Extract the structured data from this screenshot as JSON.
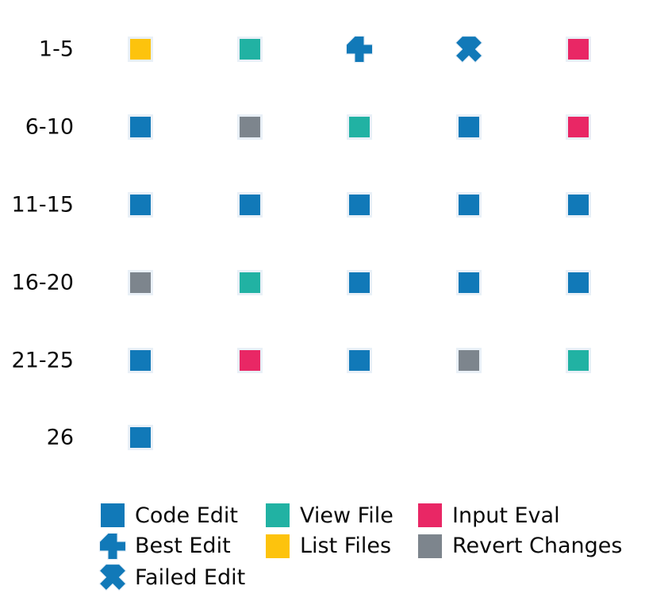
{
  "palette": {
    "blue": "#1179b8",
    "teal": "#21b2a3",
    "yellow": "#fdc30d",
    "pink": "#e92765",
    "gray": "#7d858d",
    "marker_halo": "#e9f0f7",
    "text": "#0a0a0a",
    "background": "#ffffff"
  },
  "markers": {
    "code_edit": {
      "shape": "square",
      "color": "#1179b8",
      "legend": "Code Edit"
    },
    "view_file": {
      "shape": "square",
      "color": "#21b2a3",
      "legend": "View File"
    },
    "input_eval": {
      "shape": "square",
      "color": "#e92765",
      "legend": "Input Eval"
    },
    "best_edit": {
      "shape": "plus",
      "color": "#1179b8",
      "legend": "Best Edit"
    },
    "list_files": {
      "shape": "square",
      "color": "#fdc30d",
      "legend": "List Files"
    },
    "revert_changes": {
      "shape": "square",
      "color": "#7d858d",
      "legend": "Revert Changes"
    },
    "failed_edit": {
      "shape": "x",
      "color": "#1179b8",
      "legend": "Failed Edit"
    }
  },
  "chart_data": {
    "type": "scatter",
    "title": "",
    "xlabel": "",
    "ylabel": "",
    "grid_on": false,
    "legend_position": "bottom",
    "row_labels": [
      "1-5",
      "6-10",
      "11-15",
      "16-20",
      "21-25",
      "26"
    ],
    "columns_per_row": 5,
    "grid": [
      [
        "list_files",
        "view_file",
        "best_edit",
        "failed_edit",
        "input_eval"
      ],
      [
        "code_edit",
        "revert_changes",
        "view_file",
        "code_edit",
        "input_eval"
      ],
      [
        "code_edit",
        "code_edit",
        "code_edit",
        "code_edit",
        "code_edit"
      ],
      [
        "revert_changes",
        "view_file",
        "code_edit",
        "code_edit",
        "code_edit"
      ],
      [
        "code_edit",
        "input_eval",
        "code_edit",
        "revert_changes",
        "view_file"
      ],
      [
        "code_edit"
      ]
    ],
    "legend_order": [
      "code_edit",
      "view_file",
      "input_eval",
      "best_edit",
      "list_files",
      "revert_changes",
      "failed_edit"
    ]
  }
}
